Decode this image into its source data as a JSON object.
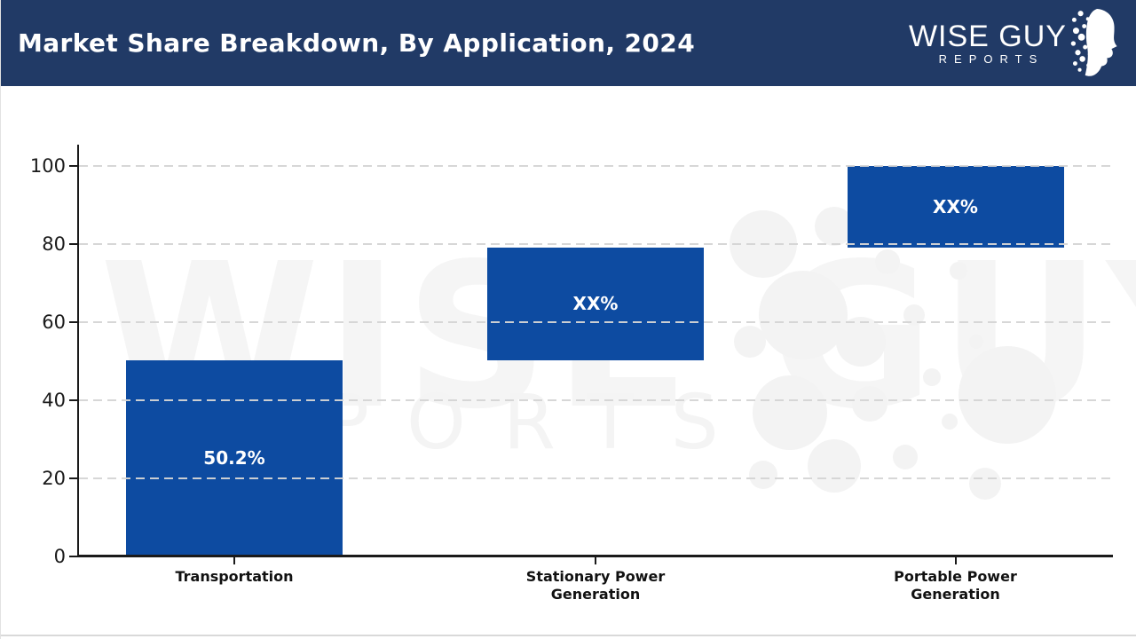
{
  "header": {
    "title": "Market Share Breakdown, By Application, 2024",
    "logo": {
      "line1": "WISE GUY",
      "line2": "REPORTS"
    },
    "bg_color": "#213A66"
  },
  "watermark": {
    "line1": "WISE GUY",
    "line2": "REPORTS"
  },
  "chart_data": {
    "type": "bar",
    "subtype": "waterfall",
    "title": "Market Share Breakdown, By Application, 2024",
    "categories": [
      "Transportation",
      "Stationary Power Generation",
      "Portable Power Generation"
    ],
    "categories_lines": [
      [
        "Transportation"
      ],
      [
        "Stationary Power",
        "Generation"
      ],
      [
        "Portable Power",
        "Generation"
      ]
    ],
    "segments": [
      {
        "category": "Transportation",
        "start": 0,
        "end": 50.2,
        "label": "50.2%"
      },
      {
        "category": "Stationary Power Generation",
        "start": 50.2,
        "end": 79.0,
        "label": "XX%"
      },
      {
        "category": "Portable Power Generation",
        "start": 79.0,
        "end": 100,
        "label": "XX%"
      }
    ],
    "bar_color": "#0D4BA1",
    "label_color": "#ffffff",
    "yticks": [
      0,
      20,
      40,
      60,
      80,
      100
    ],
    "ylim": [
      0,
      105
    ],
    "grid": "dashed-horizontal",
    "legend": "none",
    "xlabel": "",
    "ylabel": ""
  }
}
